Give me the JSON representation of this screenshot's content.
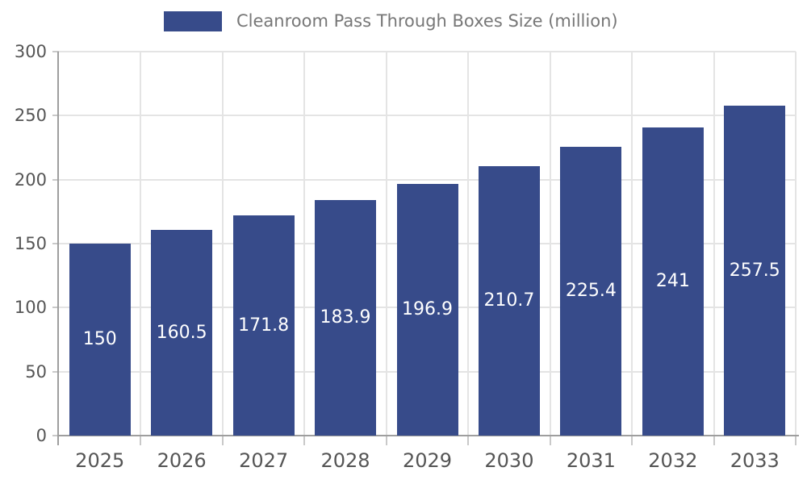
{
  "chart_data": {
    "type": "bar",
    "title": "Cleanroom Pass Through Boxes Size (million)",
    "legend_entries": [
      "Cleanroom Pass Through Boxes Size (million)"
    ],
    "legend_position": "top",
    "categories": [
      "2025",
      "2026",
      "2027",
      "2028",
      "2029",
      "2030",
      "2031",
      "2032",
      "2033"
    ],
    "series": [
      {
        "name": "Cleanroom Pass Through Boxes Size (million)",
        "values": [
          150,
          160.5,
          171.8,
          183.9,
          196.9,
          210.7,
          225.4,
          241,
          257.5
        ]
      }
    ],
    "value_labels": [
      "150",
      "160.5",
      "171.8",
      "183.9",
      "196.9",
      "210.7",
      "225.4",
      "241",
      "257.5"
    ],
    "xlabel": "",
    "ylabel": "",
    "ylim": [
      0,
      300
    ],
    "yticks": [
      0,
      50,
      100,
      150,
      200,
      250,
      300
    ],
    "grid": true,
    "colors": {
      "bar": "#374B8A",
      "axis": "#9e9e9e",
      "tick": "#c9c9c9",
      "grid": "#e4e4e4",
      "tick_label": "#555555",
      "legend_text": "#777777",
      "value_label": "#ffffff",
      "background": "#ffffff"
    }
  }
}
